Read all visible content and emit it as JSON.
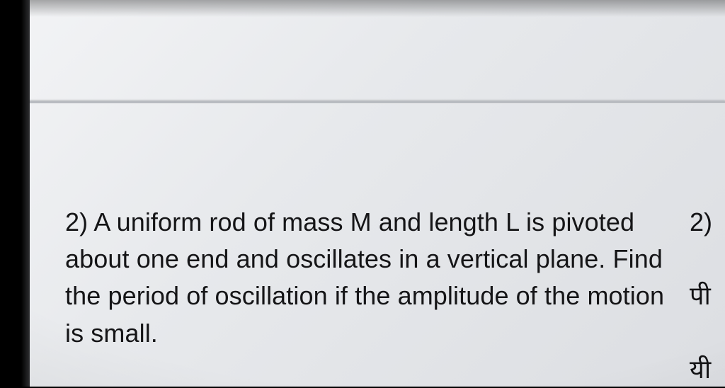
{
  "page": {
    "background_gradient": [
      "#f2f3f5",
      "#e7e9ec",
      "#dcdee2"
    ],
    "divider_color": "#b8bbc0",
    "text_color": "#151517",
    "font_size_pt": 27,
    "left_strip_color": "#000000"
  },
  "question": {
    "number": "2)",
    "text": "A uniform rod of mass M and length L is pivoted about one end and oscillates in a vertical plane. Find the period of oscillation if the amplitude of the motion is small."
  },
  "margin": {
    "items": [
      "2)",
      "",
      "पी",
      "",
      "यी"
    ]
  }
}
